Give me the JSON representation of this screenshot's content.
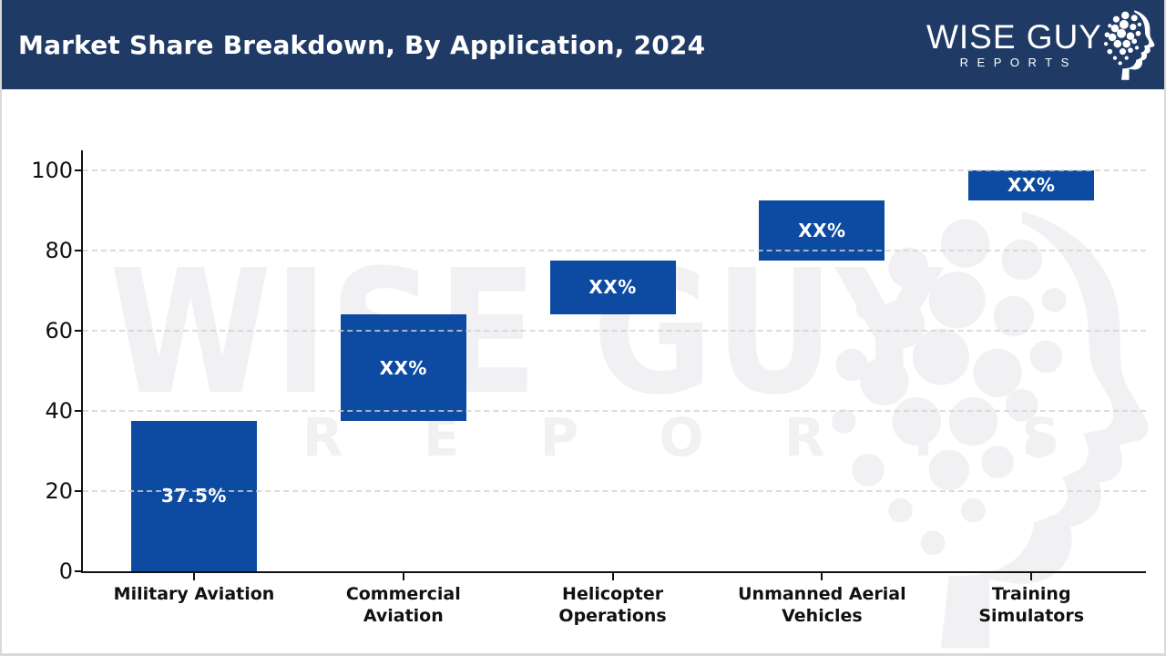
{
  "header": {
    "title": "Market Share Breakdown, By Application, 2024",
    "logo": {
      "name": "WISE GUY",
      "sub": "REPORTS"
    }
  },
  "watermark": {
    "name": "WISE GUY",
    "sub": "R E P O R T S"
  },
  "colors": {
    "header_bg": "#203a66",
    "bar_fill": "#0d4aa1",
    "bar_label_text": "#ffffff",
    "axis": "#111111",
    "grid": "#d9d9d9",
    "watermark": "#f1f1f4",
    "page_border": "#d9d9d9",
    "tick_text": "#111111"
  },
  "chart_data": {
    "type": "bar",
    "subtype": "waterfall",
    "title": "Market Share Breakdown, By Application, 2024",
    "categories": [
      "Military Aviation",
      "Commercial Aviation",
      "Helicopter Operations",
      "Unmanned Aerial Vehicles",
      "Training Simulators"
    ],
    "category_lines": [
      [
        "Military Aviation"
      ],
      [
        "Commercial",
        "Aviation"
      ],
      [
        "Helicopter",
        "Operations"
      ],
      [
        "Unmanned Aerial",
        "Vehicles"
      ],
      [
        "Training",
        "Simulators"
      ]
    ],
    "segments": [
      {
        "category": "Military Aviation",
        "start": 0,
        "end": 37.5,
        "value_label": "37.5%"
      },
      {
        "category": "Commercial Aviation",
        "start": 37.5,
        "end": 64,
        "value_label": "XX%"
      },
      {
        "category": "Helicopter Operations",
        "start": 64,
        "end": 77.5,
        "value_label": "XX%"
      },
      {
        "category": "Unmanned Aerial Vehicles",
        "start": 77.5,
        "end": 92.5,
        "value_label": "XX%"
      },
      {
        "category": "Training Simulators",
        "start": 92.5,
        "end": 100,
        "value_label": "XX%"
      }
    ],
    "yticks": [
      0,
      20,
      40,
      60,
      80,
      100
    ],
    "ylim": [
      0,
      100
    ],
    "xlabel": "",
    "ylabel": "",
    "legend": null,
    "grid": {
      "horizontal": true,
      "style": "dashed",
      "vertical": false
    }
  }
}
